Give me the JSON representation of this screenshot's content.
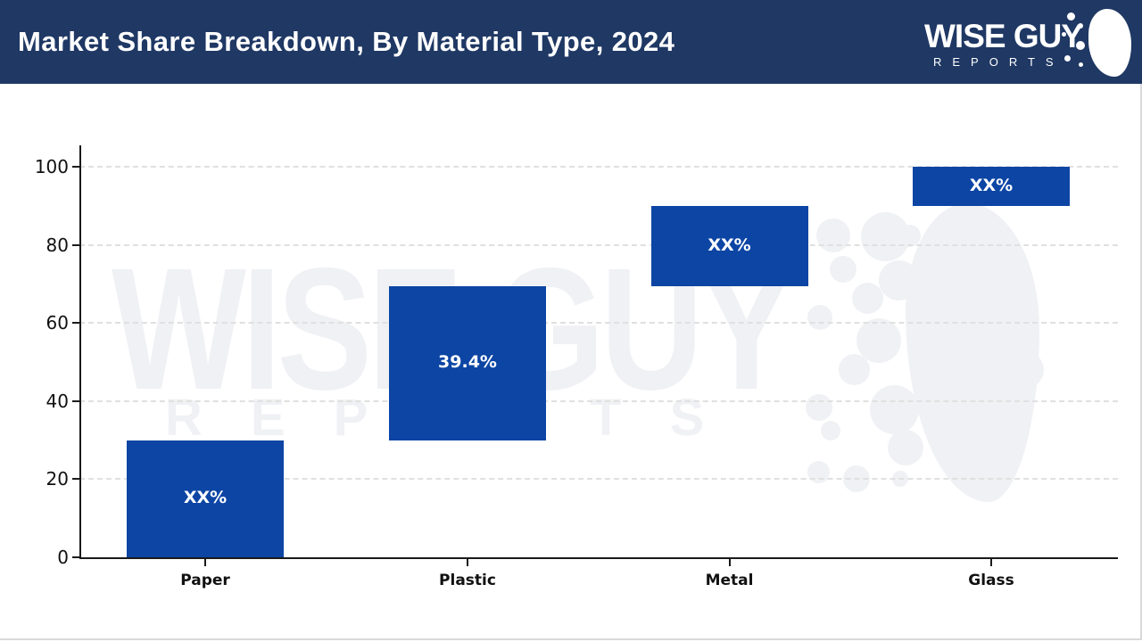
{
  "header": {
    "title": "Market Share Breakdown, By Material Type, 2024",
    "logo": {
      "brand": "WISE GUY",
      "sub": "REPORTS"
    }
  },
  "watermark": {
    "brand": "WISE GUY",
    "sub": "REPORTS"
  },
  "colors": {
    "header_bg": "#1f3864",
    "bar": "#0c45a4",
    "grid": "#e0e0e0",
    "axis": "#1a1a1a",
    "watermark": "#f0f1f4",
    "border": "#d9d9d9",
    "bar_label_text": "#ffffff",
    "tick_text": "#111111"
  },
  "chart_data": {
    "type": "bar",
    "subtype": "floating-segment-breakdown",
    "title": "Market Share Breakdown, By Material Type, 2024",
    "categories": [
      "Paper",
      "Plastic",
      "Metal",
      "Glass"
    ],
    "series": [
      {
        "name": "Paper",
        "start": 0,
        "end": 30,
        "label": "XX%"
      },
      {
        "name": "Plastic",
        "start": 30,
        "end": 69.4,
        "label": "39.4%"
      },
      {
        "name": "Metal",
        "start": 69.4,
        "end": 90,
        "label": "XX%"
      },
      {
        "name": "Glass",
        "start": 90,
        "end": 100,
        "label": "XX%"
      }
    ],
    "yticks": [
      0,
      20,
      40,
      60,
      80,
      100
    ],
    "ylim": [
      0,
      105.5
    ],
    "xlabel": "",
    "ylabel": "",
    "grid": "horizontal-dashed",
    "legend": "none"
  }
}
